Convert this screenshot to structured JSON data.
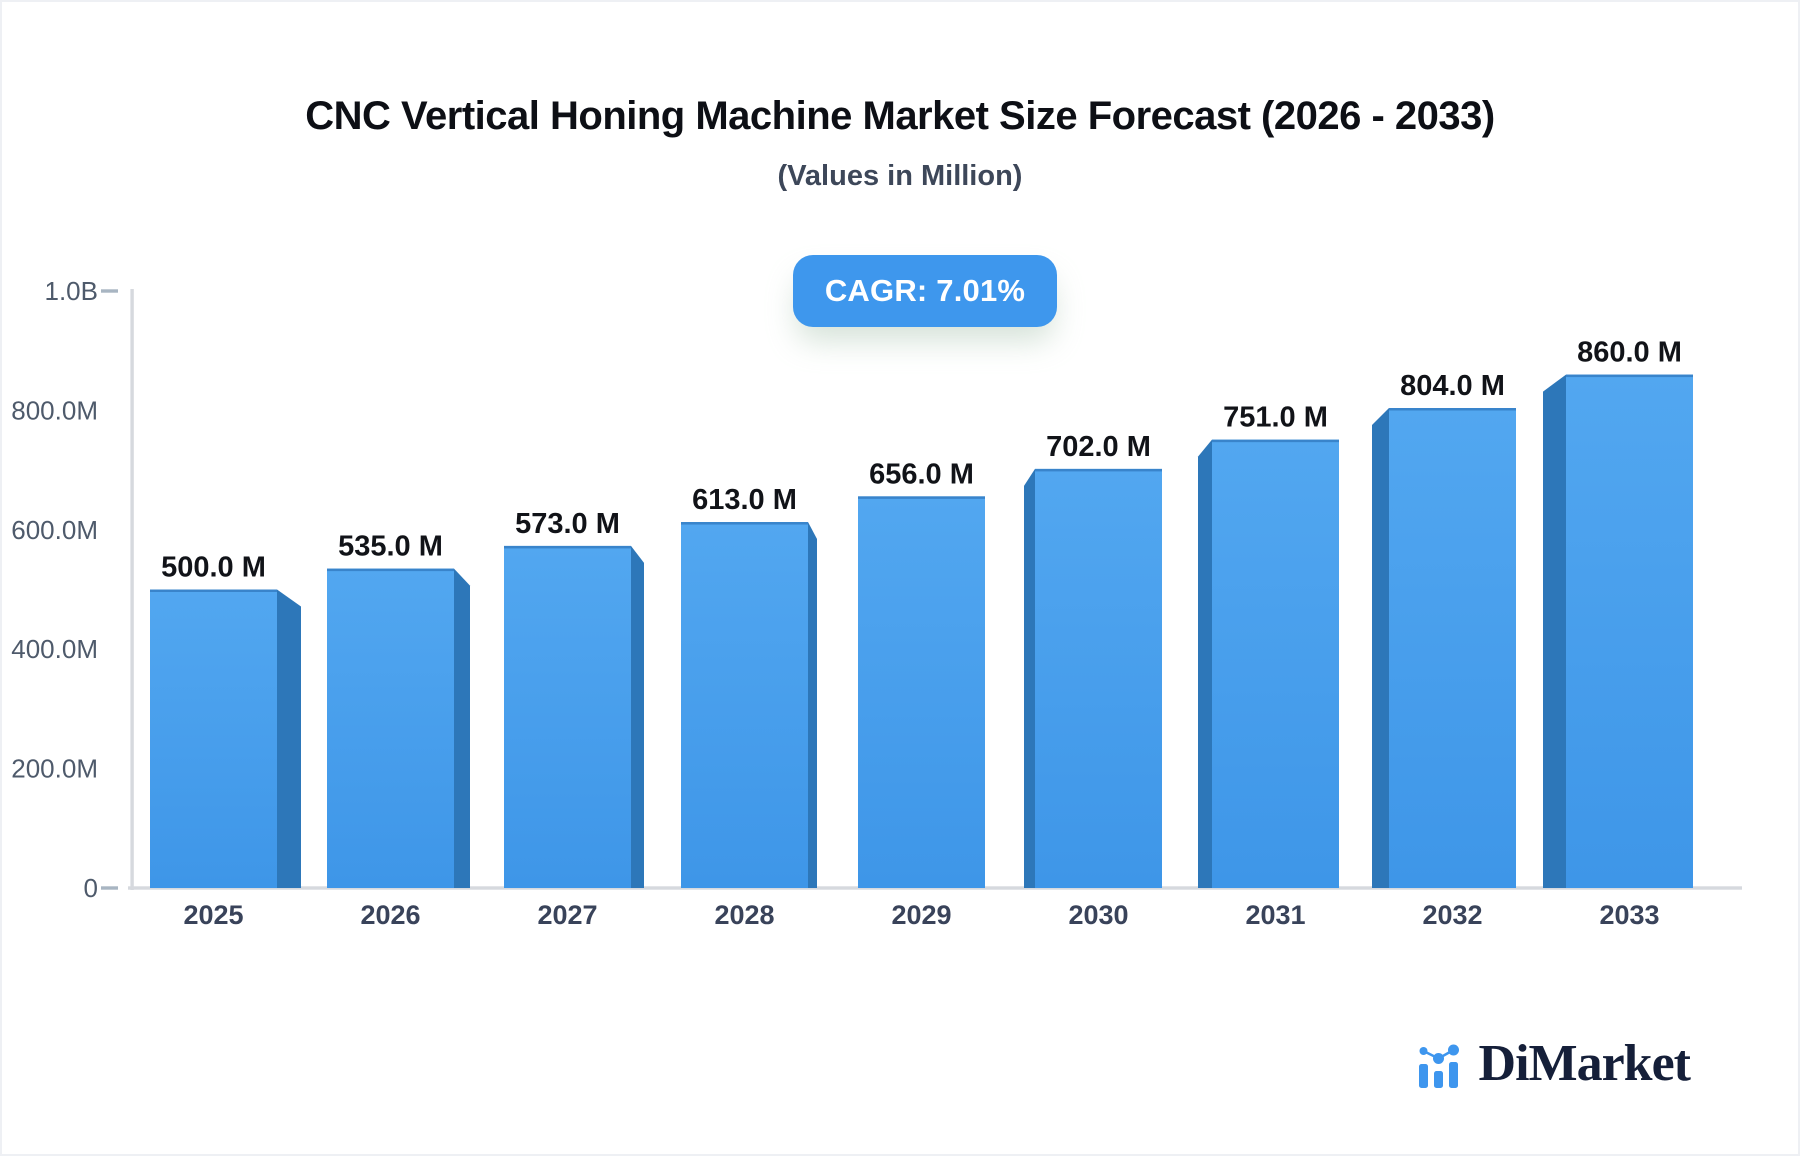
{
  "header": {
    "title": "CNC Vertical Honing Machine Market Size Forecast (2026 - 2033)",
    "subtitle": "(Values in Million)",
    "cagr_badge": "CAGR: 7.01%"
  },
  "chart_data": {
    "type": "bar",
    "title": "CNC Vertical Honing Machine Market Size Forecast (2026 - 2033)",
    "subtitle": "(Values in Million)",
    "unit": "Million",
    "categories": [
      "2025",
      "2026",
      "2027",
      "2028",
      "2029",
      "2030",
      "2031",
      "2032",
      "2033"
    ],
    "values": [
      500,
      535,
      573,
      613,
      656,
      702,
      751,
      804,
      860
    ],
    "value_labels": [
      "500.0 M",
      "535.0 M",
      "573.0 M",
      "613.0 M",
      "656.0 M",
      "702.0 M",
      "751.0 M",
      "804.0 M",
      "860.0 M"
    ],
    "cagr": "7.01%",
    "ylim": [
      0,
      1000
    ],
    "y_ticks": [
      {
        "label": "0",
        "value": 0,
        "dash": true
      },
      {
        "label": "200.0M",
        "value": 200,
        "dash": false
      },
      {
        "label": "400.0M",
        "value": 400,
        "dash": false
      },
      {
        "label": "600.0M",
        "value": 600,
        "dash": false
      },
      {
        "label": "800.0M",
        "value": 800,
        "dash": false
      },
      {
        "label": "1.0B",
        "value": 1000,
        "dash": true
      }
    ],
    "grid": false,
    "legend": "none",
    "colors": {
      "bar_face_top": "#52a7f0",
      "bar_face_bottom": "#3e96e8",
      "bar_top_edge": "#3984cb",
      "bar_side": "#2d77b9",
      "axis_line": "#d6d9de",
      "tick_dash": "#a8b5c2",
      "y_label": "#4e5a6b",
      "x_label": "#39435a",
      "value_label": "#111318",
      "badge_bg": "#3e97ed"
    }
  },
  "branding": {
    "logo_text": "DiMarket",
    "logo_icon": "bar-chart-trend-icon",
    "logo_color": "#3e96ee",
    "logo_text_color": "#151f39"
  }
}
